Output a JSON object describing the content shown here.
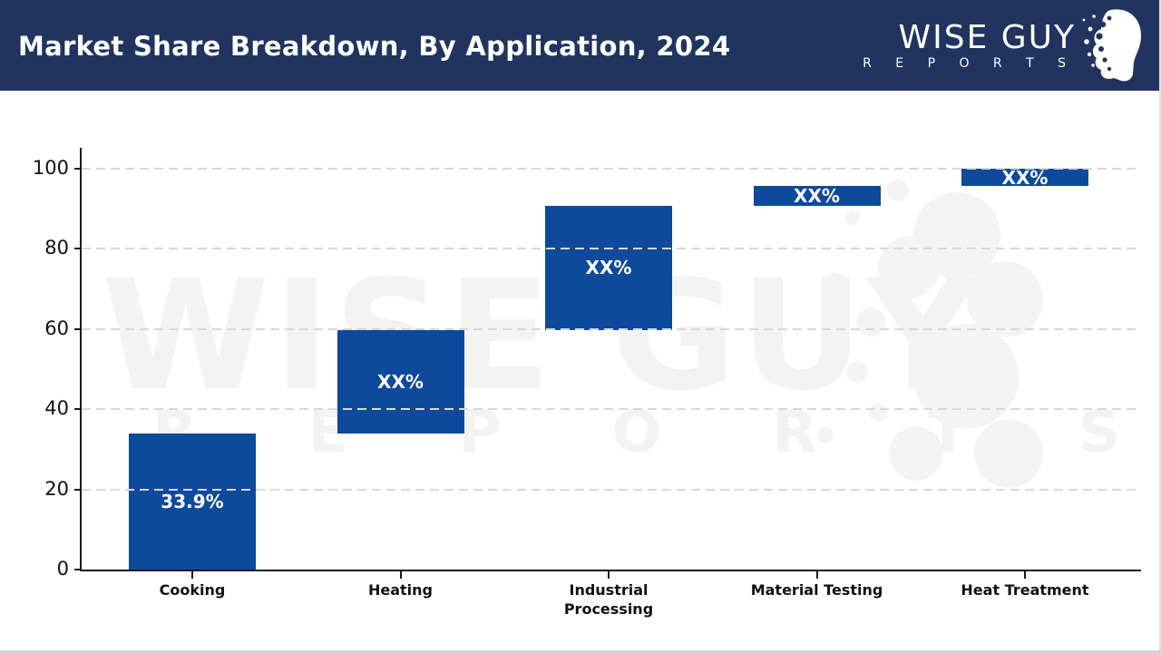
{
  "header": {
    "title": "Market Share Breakdown, By Application, 2024",
    "bg_color": "#20345f",
    "logo": {
      "line1": "WISE GUY",
      "line2": "R E P O R T S"
    }
  },
  "watermark": {
    "line1": "WISE GUY",
    "line2": "R E P O R T S"
  },
  "chart_data": {
    "type": "bar",
    "subtype": "waterfall",
    "title": "Market Share Breakdown, By Application, 2024",
    "categories": [
      "Cooking",
      "Heating",
      "Industrial Processing",
      "Material Testing",
      "Heat Treatment"
    ],
    "xlabels": [
      "Cooking",
      "Heating",
      "Industrial\nProcessing",
      "Material Testing",
      "Heat Treatment"
    ],
    "segments": [
      {
        "category": "Cooking",
        "start": 0,
        "end": 33.9,
        "label": "33.9%"
      },
      {
        "category": "Heating",
        "start": 33.9,
        "end": 59.8,
        "label": "XX%"
      },
      {
        "category": "Industrial Processing",
        "start": 59.8,
        "end": 90.7,
        "label": "XX%"
      },
      {
        "category": "Material Testing",
        "start": 90.7,
        "end": 95.7,
        "label": "XX%"
      },
      {
        "category": "Heat Treatment",
        "start": 95.7,
        "end": 100,
        "label": "XX%"
      }
    ],
    "yticks": [
      0,
      20,
      40,
      60,
      80,
      100
    ],
    "ylim": [
      0,
      105
    ],
    "xlabel": "",
    "ylabel": "",
    "grid": "dashed-horizontal",
    "legend": "none",
    "bar_color": "#0d4a9c",
    "bar_label_color": "#ffffff",
    "axis_color": "#1a1a1a",
    "gridline_color": "#d8d8d8"
  }
}
